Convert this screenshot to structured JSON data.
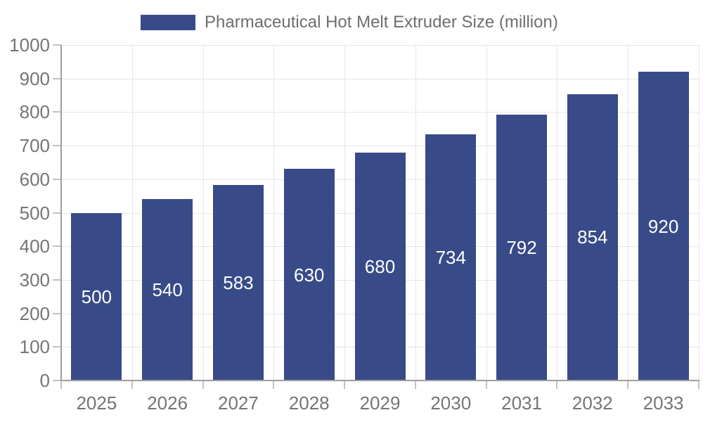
{
  "chart_data": {
    "type": "bar",
    "title": "Pharmaceutical Hot Melt Extruder Size (million)",
    "categories": [
      "2025",
      "2026",
      "2027",
      "2028",
      "2029",
      "2030",
      "2031",
      "2032",
      "2033"
    ],
    "values": [
      500,
      540,
      583,
      630,
      680,
      734,
      792,
      854,
      920
    ],
    "xlabel": "",
    "ylabel": "",
    "ylim": [
      0,
      1000
    ],
    "ytick_step": 100,
    "yticks": [
      0,
      100,
      200,
      300,
      400,
      500,
      600,
      700,
      800,
      900,
      1000
    ],
    "grid": true,
    "legend_position": "top",
    "bar_labels_inside": true,
    "colors": {
      "bar": "#384B88",
      "bar_label_text": "#FFFFFF",
      "axis_text": "#757575",
      "legend_text": "#6E6E6E",
      "gridline": "#E6E6E6",
      "axis_line": "#9E9E9E",
      "tick": "#C2C2C2",
      "background": "#FFFFFF"
    }
  }
}
